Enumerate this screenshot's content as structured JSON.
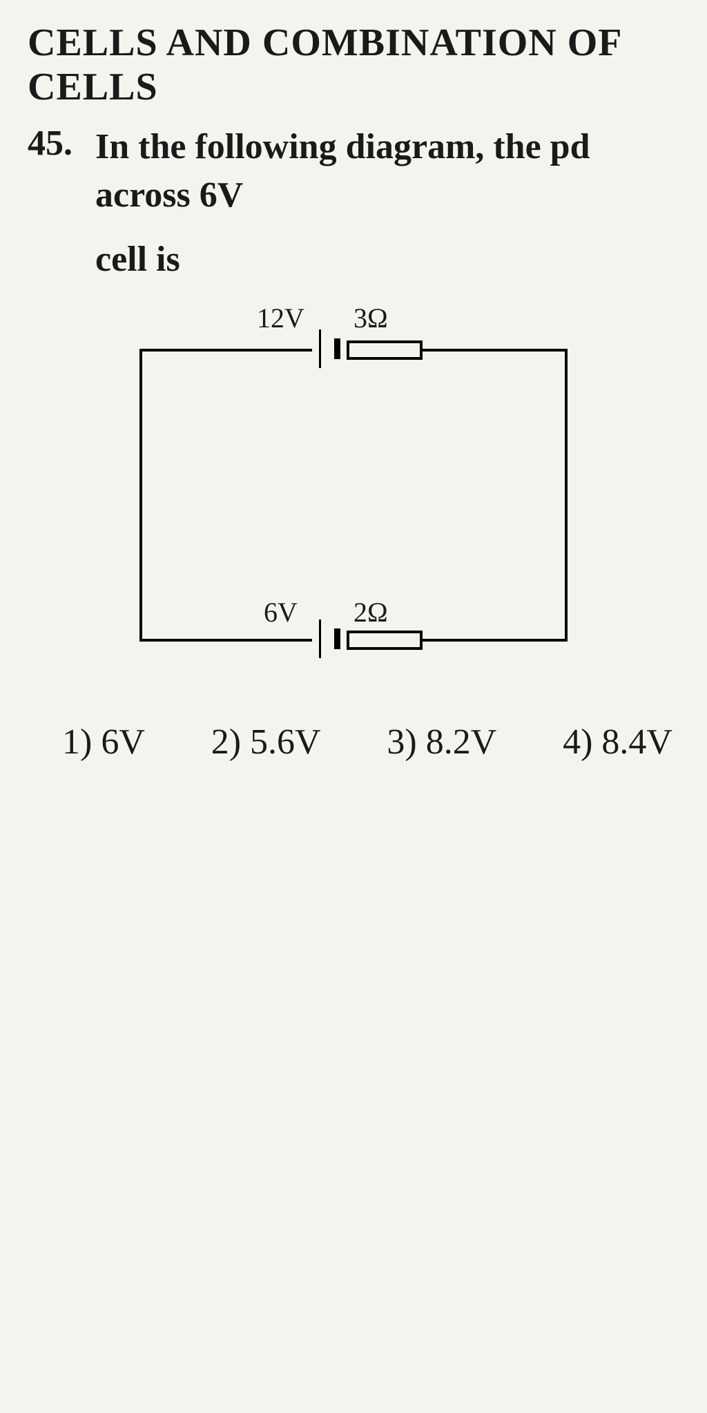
{
  "section_title": "CELLS AND COMBINATION OF CELLS",
  "question": {
    "number": "45.",
    "line1": "In the following diagram, the pd across 6V",
    "line2": "cell is"
  },
  "circuit": {
    "type": "circuit-diagram",
    "top_cell_label": "12V",
    "top_resistor_label": "3Ω",
    "bottom_cell_label": "6V",
    "bottom_resistor_label": "2Ω",
    "wire_color": "#000000",
    "background_color": "#f5f3ee",
    "label_fontsize": 40
  },
  "options": {
    "a": "1) 6V",
    "b": "2) 5.6V",
    "c": "3) 8.2V",
    "d": "4) 8.4V"
  }
}
